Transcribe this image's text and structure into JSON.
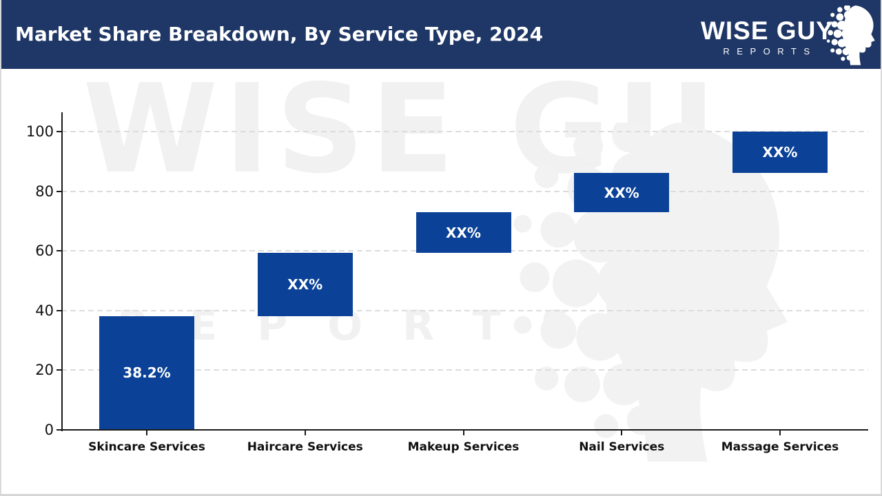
{
  "header": {
    "title": "Market Share Breakdown, By Service Type, 2024",
    "background_color": "#1f3766",
    "logo": {
      "line1": "WISE GUY",
      "line2": "REPORTS",
      "head_icon": "dotted-face-profile"
    }
  },
  "watermark": {
    "line1": "WISE GU",
    "line2": "REPORTS",
    "head_icon": "dotted-face-profile"
  },
  "chart_data": {
    "type": "bar",
    "subtype": "waterfall",
    "title": "Market Share Breakdown, By Service Type, 2024",
    "categories": [
      "Skincare Services",
      "Haircare Services",
      "Makeup Services",
      "Nail Services",
      "Massage Services"
    ],
    "segments": [
      {
        "category": "Skincare Services",
        "start": 0,
        "end": 38.2,
        "label": "38.2%"
      },
      {
        "category": "Haircare Services",
        "start": 38.2,
        "end": 59.3,
        "label": "XX%"
      },
      {
        "category": "Makeup Services",
        "start": 59.3,
        "end": 72.9,
        "label": "XX%"
      },
      {
        "category": "Nail Services",
        "start": 72.9,
        "end": 86.2,
        "label": "XX%"
      },
      {
        "category": "Massage Services",
        "start": 86.2,
        "end": 100,
        "label": "XX%"
      }
    ],
    "y_ticks": [
      0,
      20,
      40,
      60,
      80,
      100
    ],
    "ylim": [
      0,
      100
    ],
    "xlabel": "",
    "ylabel": "",
    "grid": "horizontal-dashed",
    "legend": "none",
    "bar_color": "#0b4297",
    "bar_label_color": "#ffffff",
    "axis_color": "#1a1a1a",
    "gridline_color": "#dcdcdc"
  }
}
